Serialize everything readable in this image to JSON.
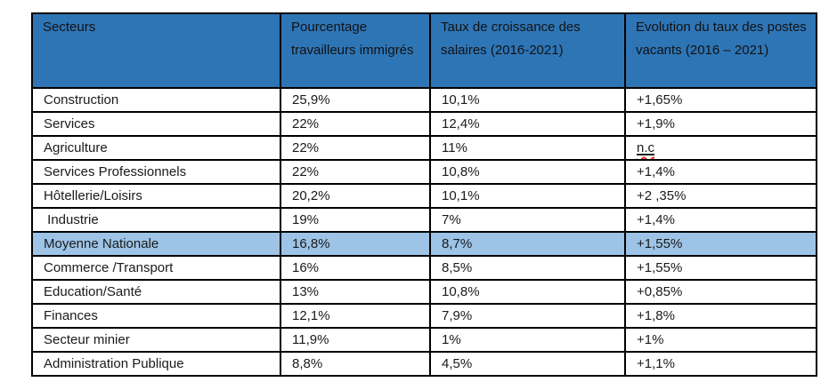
{
  "colors": {
    "page_background": "#ffffff",
    "header_background": "#2E75B6",
    "highlight_row_background": "#9DC3E6",
    "border": "#000000",
    "header_text": "#121212",
    "body_text": "#1a1a1a",
    "spellcheck_squiggle": "#e03020"
  },
  "table": {
    "columns": [
      "Secteurs",
      "Pourcentage travailleurs immigrés",
      "Taux de croissance des salaires (2016-2021)",
      "Evolution du taux des postes vacants (2016 – 2021)"
    ],
    "rows": [
      {
        "cells": [
          "Construction",
          "25,9%",
          "10,1%",
          "+1,65%"
        ]
      },
      {
        "cells": [
          "Services",
          "22%",
          "12,4%",
          "+1,9%"
        ]
      },
      {
        "cells": [
          "Agriculture",
          "22%",
          "11%",
          "n.c"
        ],
        "nc": true
      },
      {
        "cells": [
          "Services Professionnels",
          "22%",
          "10,8%",
          "+1,4%"
        ]
      },
      {
        "cells": [
          "Hôtellerie/Loisirs",
          "20,2%",
          "10,1%",
          "+2 ,35%"
        ]
      },
      {
        "cells": [
          " Industrie",
          "19%",
          "7%",
          "+1,4%"
        ]
      },
      {
        "cells": [
          "Moyenne Nationale",
          "16,8%",
          "8,7%",
          "+1,55%"
        ],
        "highlight": true
      },
      {
        "cells": [
          "Commerce /Transport",
          "16%",
          "8,5%",
          "+1,55%"
        ]
      },
      {
        "cells": [
          "Education/Santé",
          "13%",
          "10,8%",
          "+0,85%"
        ]
      },
      {
        "cells": [
          "Finances",
          "12,1%",
          "7,9%",
          "+1,8%"
        ]
      },
      {
        "cells": [
          "Secteur minier",
          "11,9%",
          "1%",
          "+1%"
        ]
      },
      {
        "cells": [
          "Administration Publique",
          "8,8%",
          "4,5%",
          "+1,1%"
        ]
      }
    ]
  },
  "chart_data": {
    "type": "table",
    "columns": [
      "Secteurs",
      "Pourcentage travailleurs immigrés",
      "Taux de croissance des salaires (2016-2021)",
      "Evolution du taux des postes vacants (2016 – 2021)"
    ],
    "rows": [
      [
        "Construction",
        "25,9%",
        "10,1%",
        "+1,65%"
      ],
      [
        "Services",
        "22%",
        "12,4%",
        "+1,9%"
      ],
      [
        "Agriculture",
        "22%",
        "11%",
        "n.c"
      ],
      [
        "Services Professionnels",
        "22%",
        "10,8%",
        "+1,4%"
      ],
      [
        "Hôtellerie/Loisirs",
        "20,2%",
        "10,1%",
        "+2 ,35%"
      ],
      [
        "Industrie",
        "19%",
        "7%",
        "+1,4%"
      ],
      [
        "Moyenne Nationale",
        "16,8%",
        "8,7%",
        "+1,55%"
      ],
      [
        "Commerce /Transport",
        "16%",
        "8,5%",
        "+1,55%"
      ],
      [
        "Education/Santé",
        "13%",
        "10,8%",
        "+0,85%"
      ],
      [
        "Finances",
        "12,1%",
        "7,9%",
        "+1,8%"
      ],
      [
        "Secteur minier",
        "11,9%",
        "1%",
        "+1%"
      ],
      [
        "Administration Publique",
        "8,8%",
        "4,5%",
        "+1,1%"
      ]
    ],
    "highlight_row": "Moyenne Nationale"
  }
}
